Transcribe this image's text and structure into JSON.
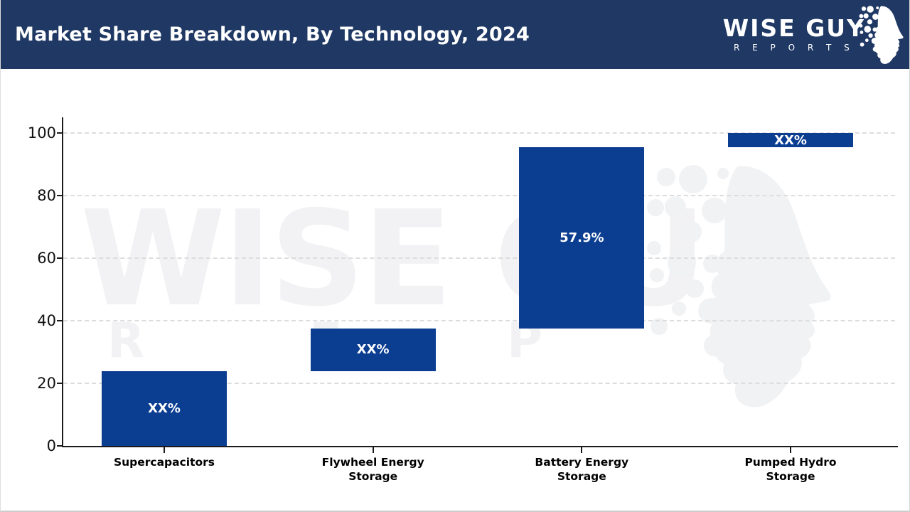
{
  "header": {
    "title": "Market Share Breakdown, By Technology, 2024",
    "logo": {
      "line1": "WISE GUY",
      "line2": "R E P O R T S"
    }
  },
  "watermark": {
    "line1": "WISE GU",
    "line2": "R E P O R T S"
  },
  "colors": {
    "header_bg": "#1f3864",
    "bar": "#0b3d91",
    "grid": "#dddddd",
    "axis": "#1a1a1a",
    "bar_label": "#ffffff",
    "watermark": "#f2f2f4"
  },
  "chart_data": {
    "type": "bar",
    "subtype": "waterfall-floating-bars",
    "title": "Market Share Breakdown, By Technology, 2024",
    "categories": [
      "Supercapacitors",
      "Flywheel Energy\nStorage",
      "Battery Energy\nStorage",
      "Pumped Hydro\nStorage"
    ],
    "segments": [
      {
        "category": "Supercapacitors",
        "start": 0,
        "end": 23.9,
        "label": "XX%"
      },
      {
        "category": "Flywheel Energy Storage",
        "start": 23.9,
        "end": 37.5,
        "label": "XX%"
      },
      {
        "category": "Battery Energy Storage",
        "start": 37.5,
        "end": 95.4,
        "label": "57.9%"
      },
      {
        "category": "Pumped Hydro Storage",
        "start": 95.4,
        "end": 100,
        "label": "XX%"
      }
    ],
    "xlabel": "",
    "ylabel": "",
    "ylim": [
      0,
      105
    ],
    "yticks": [
      0,
      20,
      40,
      60,
      80,
      100
    ],
    "grid": "horizontal-dashed",
    "legend": "none"
  }
}
